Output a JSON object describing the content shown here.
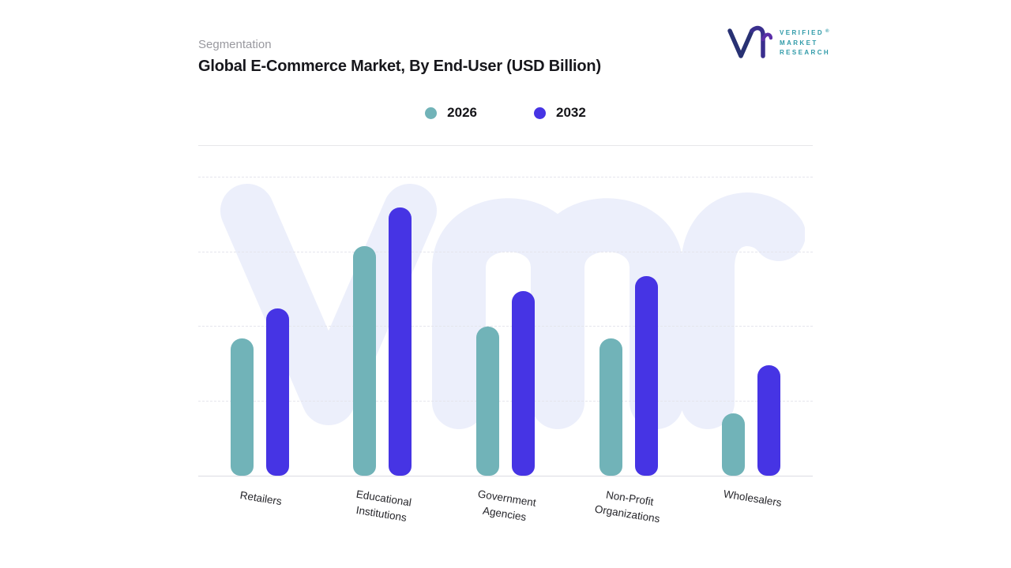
{
  "header": {
    "eyebrow": "Segmentation",
    "title": "Global E-Commerce Market, By End-User (USD Billion)"
  },
  "logo": {
    "mark_icon": "vmr-monogram-icon",
    "lines": [
      "VERIFIED",
      "MARKET",
      "RESEARCH"
    ],
    "registered": "®"
  },
  "chart_data": {
    "type": "bar",
    "title": "Global E-Commerce Market, By End-User (USD Billion)",
    "units": "USD Billion",
    "categories": [
      "Retailers",
      "Educational\nInstitutions",
      "Government\nAgencies",
      "Non-Profit\nOrganizations",
      "Wholesalers"
    ],
    "series": [
      {
        "name": "2026",
        "color": "#71B3B8",
        "values": [
          46,
          77,
          50,
          46,
          21
        ]
      },
      {
        "name": "2032",
        "color": "#4634E4",
        "values": [
          56,
          90,
          62,
          67,
          37
        ]
      }
    ],
    "xlabel": "",
    "ylabel": "",
    "value_axis": {
      "min": 0,
      "max": 100,
      "tick_labels_visible": false,
      "values_estimated": true
    },
    "gridline_levels": [
      25,
      50,
      75,
      100
    ],
    "grid_style": "dashed-horizontal",
    "legend_position": "top-center",
    "watermark_text": "vmr"
  },
  "colors": {
    "background": "#FFFFFF",
    "grid": "#E5E5EC",
    "baseline": "#DCDCE3",
    "divider": "#E7E7EA",
    "title": "#17171C",
    "eyebrow": "#99999F",
    "axis_label": "#26262B",
    "watermark": "#ECEFFB",
    "logo_navy": "#283173",
    "logo_purple": "#5B2EA8",
    "logo_teal": "#2F9AA8"
  }
}
